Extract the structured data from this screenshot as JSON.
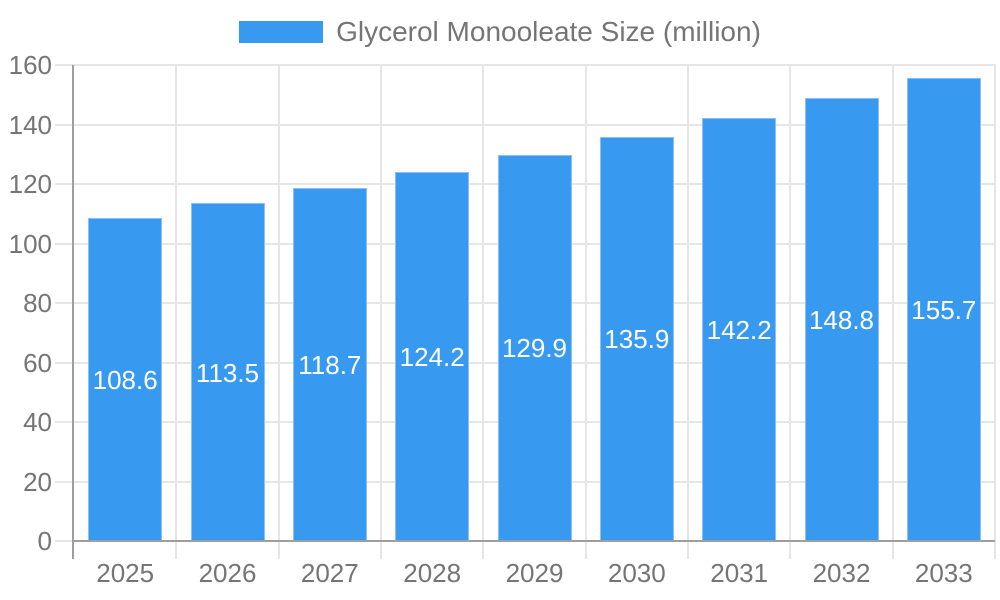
{
  "chart_data": {
    "type": "bar",
    "title": "",
    "categories": [
      "2025",
      "2026",
      "2027",
      "2028",
      "2029",
      "2030",
      "2031",
      "2032",
      "2033"
    ],
    "series": [
      {
        "name": "Glycerol Monooleate Size (million)",
        "color": "#3899F0",
        "values": [
          108.6,
          113.5,
          118.7,
          124.2,
          129.9,
          135.9,
          142.2,
          148.8,
          155.7
        ]
      }
    ],
    "value_label_decimals": 1,
    "bar_value_labels_visible": true,
    "xlabel": "",
    "ylabel": "",
    "ylim": [
      0,
      160
    ],
    "yticks": [
      0,
      20,
      40,
      60,
      80,
      100,
      120,
      140,
      160
    ],
    "grid": {
      "horizontal": true,
      "vertical_category_boundaries": true
    },
    "legend_position": "top"
  },
  "colors": {
    "bar": "#3899F0",
    "bar_border": "#8CC0F4",
    "bar_label": "#FFFFFF",
    "axis_text": "#757575",
    "legend_text": "#757575",
    "gridline": "#E6E6E6",
    "axis_line": "#9E9E9E",
    "background": "#FFFFFF"
  }
}
